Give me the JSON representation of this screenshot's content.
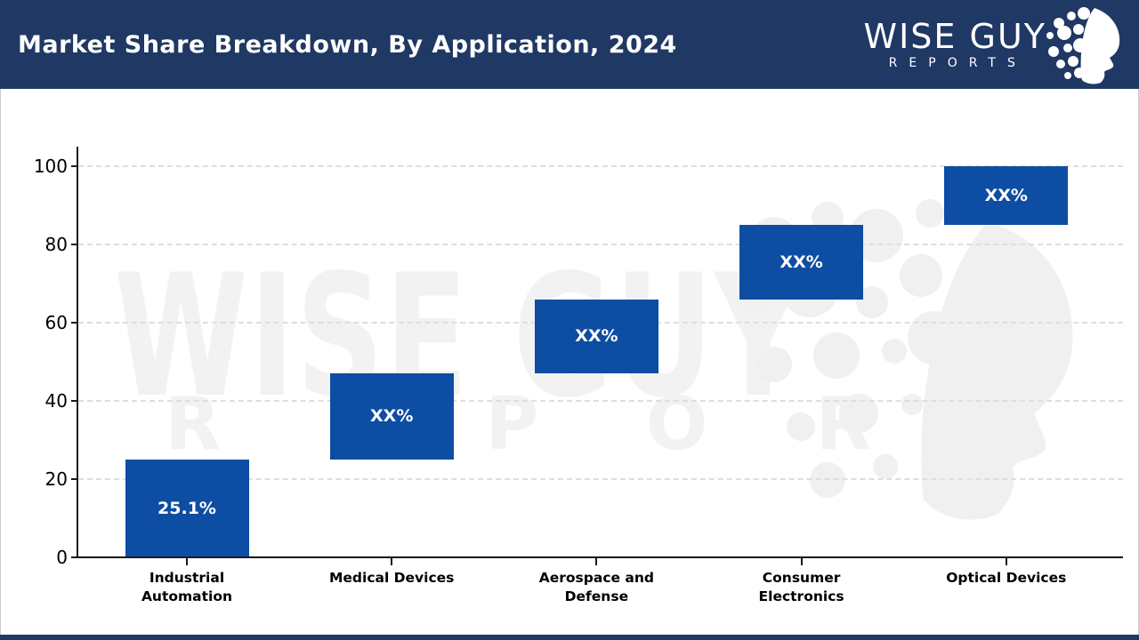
{
  "header": {
    "title": "Market Share Breakdown, By Application, 2024",
    "bg_color": "#1f3864",
    "logo": {
      "line1": "WISE GUY",
      "line2": "REPORTS"
    }
  },
  "watermark": {
    "line1": "WISE GUY",
    "line2": "R E P O R T S"
  },
  "footer": {
    "bar_color": "#1f3864"
  },
  "chart_data": {
    "type": "bar",
    "subtype": "waterfall",
    "title": "Market Share Breakdown, By Application, 2024",
    "categories": [
      "Industrial Automation",
      "Medical Devices",
      "Aerospace and Defense",
      "Consumer Electronics",
      "Optical Devices"
    ],
    "segments": [
      [
        0,
        25.1
      ],
      [
        25.1,
        47
      ],
      [
        47,
        66
      ],
      [
        66,
        85
      ],
      [
        85,
        100
      ]
    ],
    "values": [
      25.1,
      21.9,
      19,
      19,
      15
    ],
    "bar_labels": [
      "25.1%",
      "XX%",
      "XX%",
      "XX%",
      "XX%"
    ],
    "yticks": [
      0,
      20,
      40,
      60,
      80,
      100
    ],
    "ylim": [
      0,
      100
    ],
    "xlabel": "",
    "ylabel": "",
    "grid": "horizontal-dashed",
    "legend": "none",
    "bar_color": "#0d4da3",
    "bar_label_color": "#ffffff",
    "grid_color": "#dedede",
    "axis_color": "#1a1a1a"
  }
}
